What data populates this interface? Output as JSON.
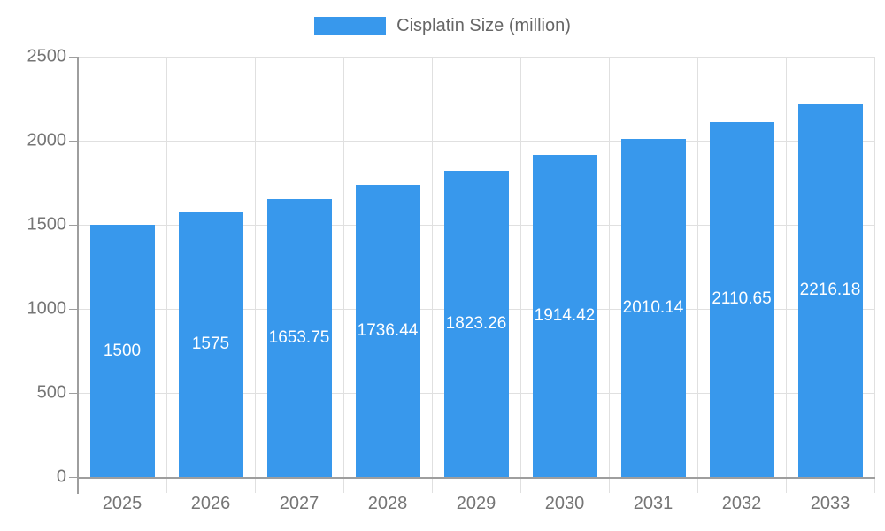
{
  "chart_data": {
    "type": "bar",
    "title": "Cisplatin Size (million)",
    "legend": {
      "label": "Cisplatin Size (million)",
      "position": "top"
    },
    "categories": [
      "2025",
      "2026",
      "2027",
      "2028",
      "2029",
      "2030",
      "2031",
      "2032",
      "2033"
    ],
    "series": [
      {
        "name": "Cisplatin Size (million)",
        "values": [
          1500,
          1575,
          1653.75,
          1736.44,
          1823.26,
          1914.42,
          2010.14,
          2110.65,
          2216.18
        ],
        "data_labels": [
          "1500",
          "1575",
          "1653.75",
          "1736.44",
          "1823.26",
          "1914.42",
          "2010.14",
          "2110.65",
          "2216.18"
        ]
      }
    ],
    "xlabel": "",
    "ylabel": "",
    "ylim": [
      0,
      2500
    ],
    "yticks": [
      0,
      500,
      1000,
      1500,
      2000,
      2500
    ],
    "ytick_labels": [
      "0",
      "500",
      "1000",
      "1500",
      "2000",
      "2500"
    ],
    "grid": true,
    "colors": {
      "bar": "#3898ec",
      "grid": "#e0e0e0",
      "axis": "#9e9e9e",
      "text": "#757575",
      "title": "#666666",
      "bar_label": "#ffffff"
    }
  }
}
